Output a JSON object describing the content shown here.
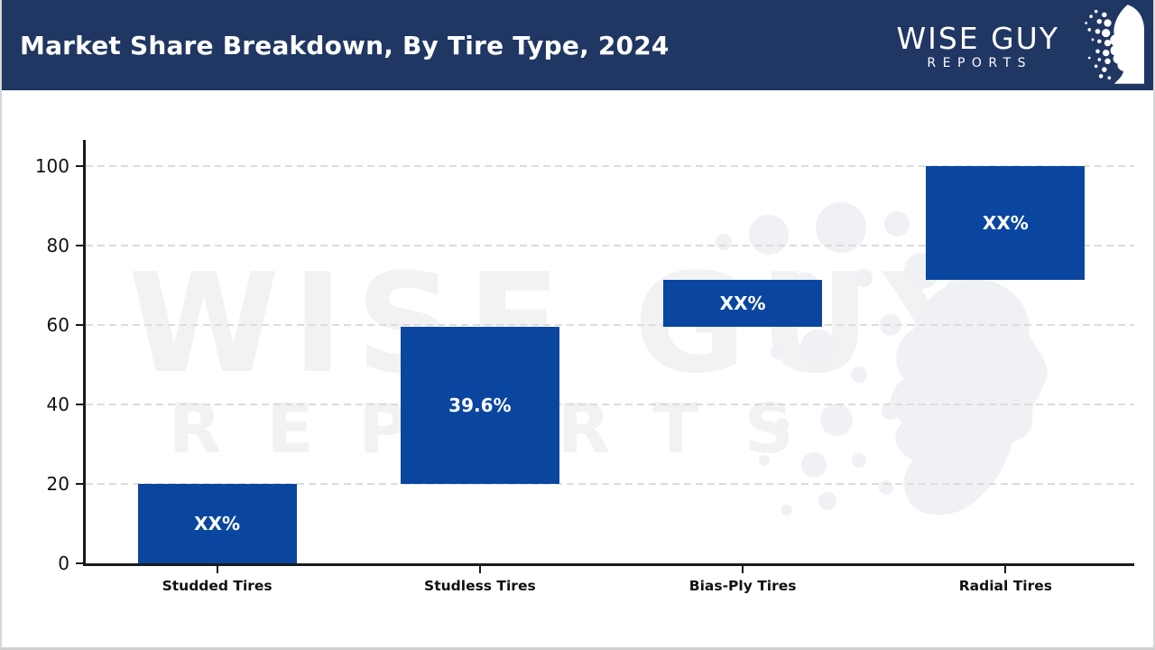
{
  "header": {
    "title": "Market Share Breakdown, By Tire Type, 2024",
    "logo": {
      "wordmark": "WISE GUY",
      "subtitle": "REPORTS"
    }
  },
  "watermark": {
    "line1": "WISE GUY",
    "line2": "REPORTS"
  },
  "colors": {
    "header_bg": "#203663",
    "bar": "#0a46a0",
    "axis": "#1a1a1a",
    "gridline": "#dcdcdc",
    "watermark": "#f2f2f2",
    "bar_label": "#ffffff",
    "title_text": "#ffffff"
  },
  "chart_data": {
    "type": "bar",
    "subtype": "waterfall",
    "title": "Market Share Breakdown, By Tire Type, 2024",
    "xlabel": "",
    "ylabel": "",
    "categories": [
      "Studded Tires",
      "Studless Tires",
      "Bias-Ply Tires",
      "Radial Tires"
    ],
    "series": [
      {
        "name": "Market Share (%)",
        "segments": [
          {
            "category": "Studded Tires",
            "start": 0,
            "end": 20,
            "label": "XX%"
          },
          {
            "category": "Studless Tires",
            "start": 20,
            "end": 59.6,
            "label": "39.6%"
          },
          {
            "category": "Bias-Ply Tires",
            "start": 59.6,
            "end": 71.4,
            "label": "XX%"
          },
          {
            "category": "Radial Tires",
            "start": 71.4,
            "end": 100,
            "label": "XX%"
          }
        ]
      }
    ],
    "yticks": [
      0,
      20,
      40,
      60,
      80,
      100
    ],
    "ylim": [
      0,
      107
    ],
    "grid": "dashed-horizontal",
    "legend": "none"
  }
}
